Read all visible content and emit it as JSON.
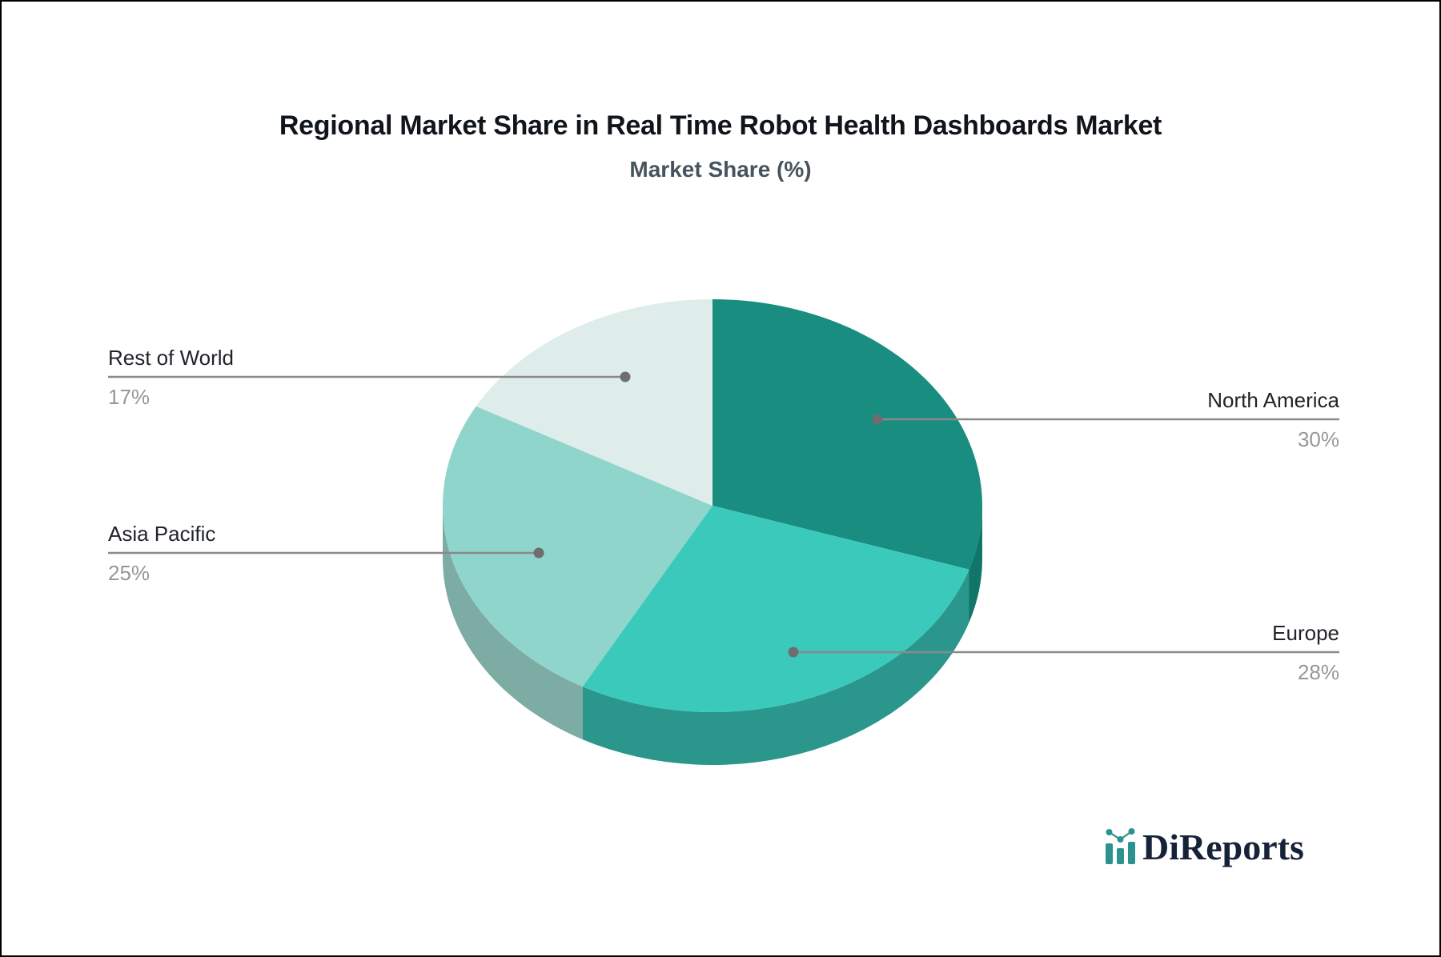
{
  "title": "Regional Market Share in Real Time Robot Health Dashboards Market",
  "subtitle": "Market Share (%)",
  "logo": {
    "text": "DiReports",
    "icon": "bar-chart-sparkline-icon",
    "icon_color": "#2B9290",
    "text_color": "#152238"
  },
  "chart_data": {
    "type": "pie",
    "style": "3d-depth",
    "title": "Regional Market Share in Real Time Robot Health Dashboards Market",
    "subtitle": "Market Share (%)",
    "unit": "%",
    "start_angle_deg": 0,
    "direction": "clockwise",
    "legend_position": "callout-labels-with-leader-lines",
    "slices": [
      {
        "label": "North America",
        "value": 30,
        "display": "30%",
        "color": "#188D80",
        "side_color": "#11756A"
      },
      {
        "label": "Europe",
        "value": 28,
        "display": "28%",
        "color": "#3BC9BC",
        "side_color": "#2A968C"
      },
      {
        "label": "Asia Pacific",
        "value": 25,
        "display": "25%",
        "color": "#8FD5CC",
        "side_color": "#7CACA3"
      },
      {
        "label": "Rest of World",
        "value": 17,
        "display": "17%",
        "color": "#DEEDEA",
        "side_color": null
      }
    ]
  }
}
